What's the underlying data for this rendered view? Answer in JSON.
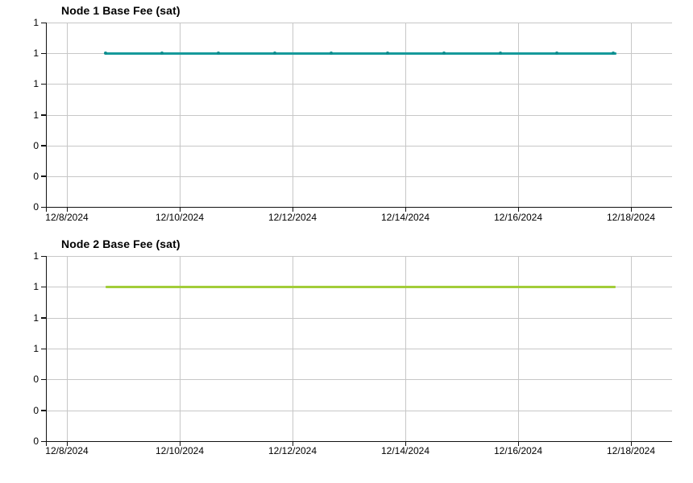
{
  "style": {
    "background": "#ffffff",
    "grid_color": "#c7c7c7",
    "axis_color": "#111111",
    "text_color": "#000000",
    "node1_line_color": "#169a9b",
    "node1_marker_color": "#0f8d8e",
    "node2_line_color": "#a2cd39"
  },
  "chart_data": [
    {
      "type": "line",
      "title": "Node 1 Base Fee (sat)",
      "xlabel": "",
      "ylabel": "",
      "x_tick_labels": [
        "12/8/2024",
        "12/10/2024",
        "12/12/2024",
        "12/14/2024",
        "12/16/2024",
        "12/18/2024"
      ],
      "x_tick_days": [
        0,
        2,
        4,
        6,
        8,
        10
      ],
      "y_tick_labels": [
        "1",
        "1",
        "1",
        "1",
        "0",
        "0",
        "0"
      ],
      "y_tick_values": [
        1.2,
        1.0,
        0.8,
        0.6,
        0.4,
        0.2,
        0
      ],
      "ylim": [
        0,
        1.2
      ],
      "grid": true,
      "legend_position": "none",
      "series": [
        {
          "name": "Node 1 Base Fee",
          "color": "#169a9b",
          "marker_color": "#0f8d8e",
          "markers": true,
          "line_width": 3,
          "value": 1,
          "start_day": 0.69,
          "end_day": 9.74,
          "start_date": "12/8/2024",
          "end_date": "12/17/2024"
        }
      ]
    },
    {
      "type": "line",
      "title": "Node 2 Base Fee (sat)",
      "xlabel": "",
      "ylabel": "",
      "x_tick_labels": [
        "12/8/2024",
        "12/10/2024",
        "12/12/2024",
        "12/14/2024",
        "12/16/2024",
        "12/18/2024"
      ],
      "x_tick_days": [
        0,
        2,
        4,
        6,
        8,
        10
      ],
      "y_tick_labels": [
        "1",
        "1",
        "1",
        "1",
        "0",
        "0",
        "0"
      ],
      "y_tick_values": [
        1.2,
        1.0,
        0.8,
        0.6,
        0.4,
        0.2,
        0
      ],
      "ylim": [
        0,
        1.2
      ],
      "grid": true,
      "legend_position": "none",
      "series": [
        {
          "name": "Node 2 Base Fee",
          "color": "#a2cd39",
          "marker_color": "#a2cd39",
          "markers": false,
          "line_width": 3,
          "value": 1,
          "start_day": 0.69,
          "end_day": 9.73,
          "start_date": "12/8/2024",
          "end_date": "12/17/2024"
        }
      ]
    }
  ]
}
